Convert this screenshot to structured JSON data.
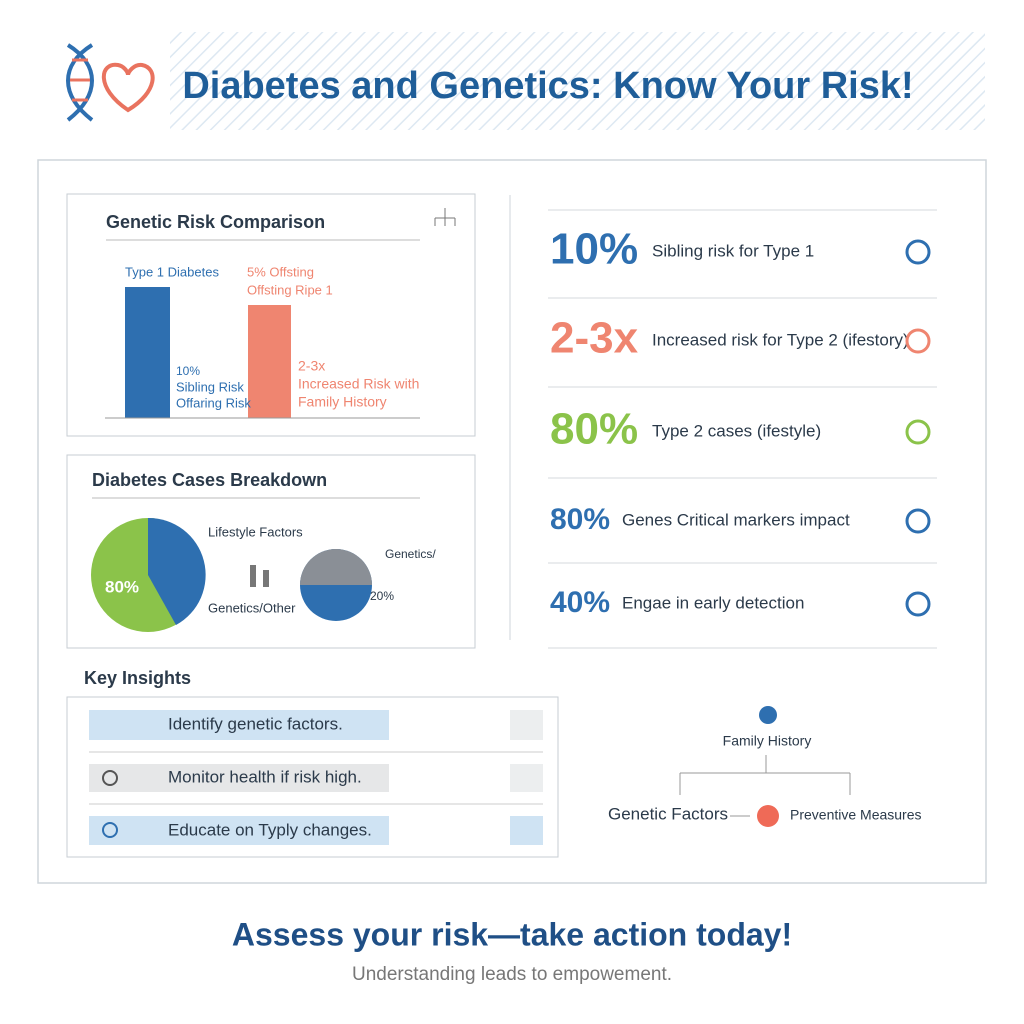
{
  "header": {
    "title": "Diabetes and Genetics: Know Your Risk!"
  },
  "bar_panel": {
    "title": "Genetic Risk Comparison",
    "type1_label": "Type 1 Diabetes",
    "offspring_label": [
      "5% Offsting",
      "Offsting Ripe 1"
    ],
    "sibling_label": [
      "10%",
      "Sibling Risk",
      "Offaring Risk"
    ],
    "family_label": [
      "2-3x",
      "Increased Risk with",
      "Family History"
    ]
  },
  "pie_panel": {
    "title": "Diabetes Cases Breakdown",
    "big_value": "80%",
    "lifestyle_label": "Lifestyle Factors",
    "genetics_label": "Genetics/Other",
    "small_label": "Genetics/",
    "small_value": "20%"
  },
  "stats": [
    {
      "value": "10%",
      "text": "Sibling risk for Type 1"
    },
    {
      "value": "2-3x",
      "text": "Increased risk for Type 2 (ifestory)"
    },
    {
      "value": "80%",
      "text": "Type 2 cases (ifestyle)"
    },
    {
      "value": "80%",
      "text": "Genes Critical markers impact"
    },
    {
      "value": "40%",
      "text": "Engae in early detection"
    }
  ],
  "insights": {
    "title": "Key Insights",
    "items": [
      "Identify genetic factors.",
      "Monitor health if risk high.",
      "Educate on Typly changes."
    ]
  },
  "flow": {
    "top": "Family History",
    "left": "Genetic Factors",
    "right": "Preventive Measures"
  },
  "footer": {
    "title": "Assess your risk—take action today!",
    "subtitle": "Understanding leads to empowement."
  }
}
